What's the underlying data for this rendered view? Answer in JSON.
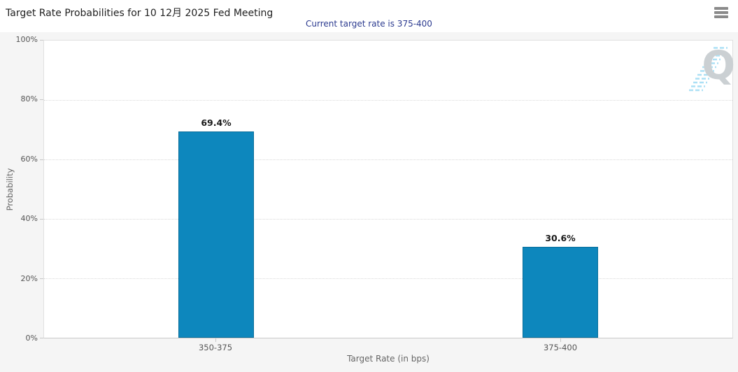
{
  "header": {
    "title": "Target Rate Probabilities for 10 12月 2025 Fed Meeting",
    "menu_icon": "hamburger-icon"
  },
  "subtitle": "Current target rate is 375-400",
  "watermark": {
    "letter": "Q",
    "icon": "quikstrike-q-watermark"
  },
  "axes": {
    "y_title": "Probability",
    "x_title": "Target Rate (in bps)",
    "y_tick_labels": [
      "0%",
      "20%",
      "40%",
      "60%",
      "80%",
      "100%"
    ]
  },
  "chart_data": {
    "type": "bar",
    "title": "Target Rate Probabilities for 10 12月 2025 Fed Meeting",
    "subtitle": "Current target rate is 375-400",
    "categories": [
      "350-375",
      "375-400"
    ],
    "values": [
      69.4,
      30.6
    ],
    "value_labels": [
      "69.4%",
      "30.6%"
    ],
    "xlabel": "Target Rate (in bps)",
    "ylabel": "Probability",
    "ylim": [
      0,
      100
    ],
    "y_ticks": [
      0,
      20,
      40,
      60,
      80,
      100
    ],
    "grid": "horizontal-dotted",
    "legend": "none",
    "bar_color": "#0d87bd",
    "bar_border_color": "#0a6f9b"
  },
  "colors": {
    "background": "#f5f5f5",
    "plot_background": "#ffffff",
    "subtitle_text": "#2b3a8f",
    "bar_fill": "#0d87bd",
    "bar_border": "#0a6f9b"
  }
}
